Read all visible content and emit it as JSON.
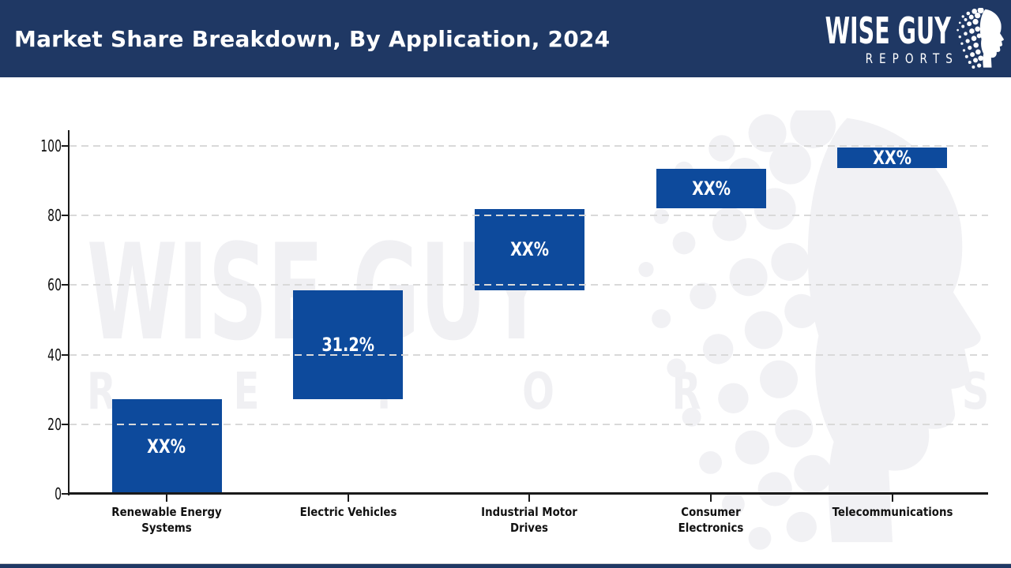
{
  "header": {
    "title": "Market Share Breakdown, By Application, 2024",
    "bg_color": "#1f3864",
    "logo": {
      "line1": "WISE GUY",
      "line2": "REPORTS",
      "icon": "dotted-head-profile"
    }
  },
  "watermark": {
    "line1": "WISE GUY",
    "line2": "R E P O R T S"
  },
  "footer": {
    "bar_color": "#1f3864"
  },
  "chart_data": {
    "type": "bar",
    "subtype": "waterfall",
    "title": "Market Share Breakdown, By Application, 2024",
    "xlabel": "",
    "ylabel": "",
    "ylim": [
      0,
      100
    ],
    "yticks": [
      0,
      20,
      40,
      60,
      80,
      100
    ],
    "yticklabels": [
      "0",
      "20",
      "40",
      "60",
      "80",
      "100"
    ],
    "grid": "horizontal-dashed-over-bars",
    "legend": "none",
    "bar_color": "#0d4a9c",
    "bar_label_color": "#ffffff",
    "segments": [
      {
        "category": "Renewable Energy\nSystems",
        "start": 0,
        "end": 27.2,
        "label": "XX%"
      },
      {
        "category": "Electric Vehicles",
        "start": 27.2,
        "end": 58.4,
        "label": "31.2%"
      },
      {
        "category": "Industrial Motor\nDrives",
        "start": 58.6,
        "end": 81.8,
        "label": "XX%"
      },
      {
        "category": "Consumer\nElectronics",
        "start": 82.1,
        "end": 93.5,
        "label": "XX%"
      },
      {
        "category": "Telecommunications",
        "start": 93.7,
        "end": 99.6,
        "label": "XX%"
      }
    ]
  }
}
